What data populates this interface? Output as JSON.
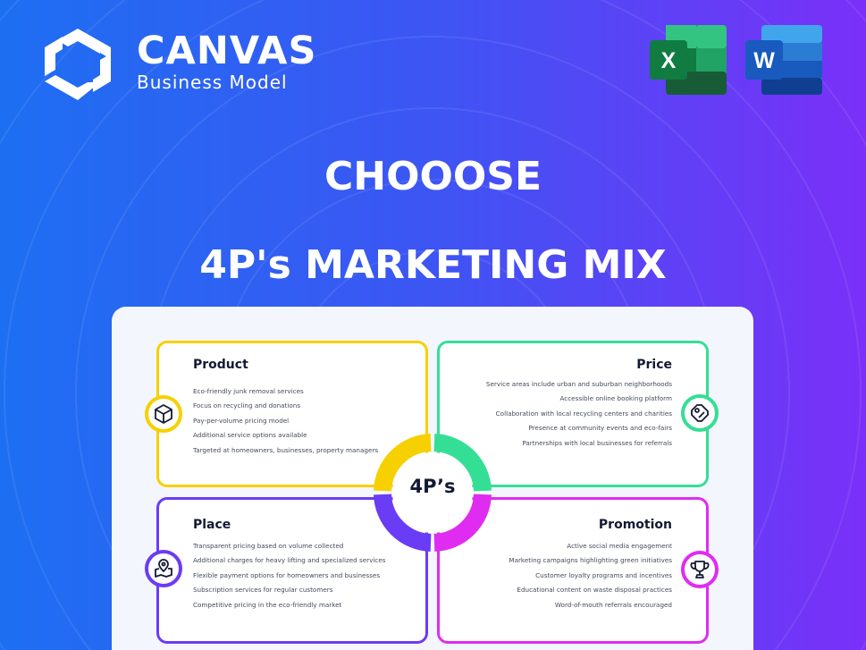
{
  "brand": {
    "title": "CANVAS",
    "subtitle": "Business Model"
  },
  "apps": [
    {
      "name": "Excel",
      "letter": "X",
      "color": "#1d6f42"
    },
    {
      "name": "Word",
      "letter": "W",
      "color": "#185abd"
    }
  ],
  "heading": {
    "line1": "CHOOOSE",
    "line2": "4P's MARKETING MIX"
  },
  "center_label": "4P’s",
  "colors": {
    "product": "#f7d000",
    "price": "#34df95",
    "place": "#6a3cf5",
    "promotion": "#e02cf0"
  },
  "quadrants": {
    "product": {
      "title": "Product",
      "items": [
        "Eco-friendly junk removal services",
        "Focus on recycling and donations",
        "Pay-per-volume pricing model",
        "Additional service options available",
        "Targeted at homeowners, businesses, property managers"
      ],
      "icon": "box-icon"
    },
    "price": {
      "title": "Price",
      "items": [
        "Service areas include urban and suburban neighborhoods",
        "Accessible online booking platform",
        "Collaboration with local recycling centers and charities",
        "Presence at community events and eco-fairs",
        "Partnerships with local businesses for referrals"
      ],
      "icon": "price-tag-icon"
    },
    "place": {
      "title": "Place",
      "items": [
        "Transparent pricing based on volume collected",
        "Additional charges for heavy lifting and specialized services",
        "Flexible payment options for homeowners and businesses",
        "Subscription services for regular customers",
        "Competitive pricing in the eco-friendly market"
      ],
      "icon": "map-pin-icon"
    },
    "promotion": {
      "title": "Promotion",
      "items": [
        "Active social media engagement",
        "Marketing campaigns highlighting green initiatives",
        "Customer loyalty programs and incentives",
        "Educational content on waste disposal practices",
        "Word-of-mouth referrals encouraged"
      ],
      "icon": "trophy-icon"
    }
  }
}
